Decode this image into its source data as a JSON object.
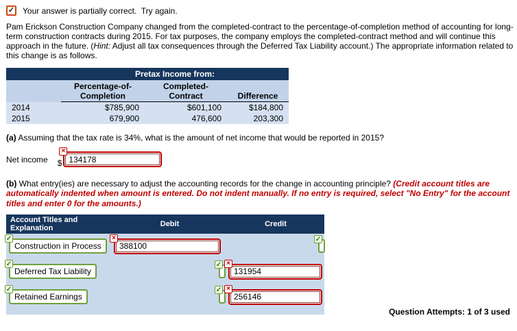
{
  "icons": {
    "check": "✓",
    "x": "×"
  },
  "colors": {
    "header_navy": "#17365D",
    "table_blue": "#C9D9EC",
    "correct_green": "#6FA03C",
    "incorrect_red": "#C00000"
  },
  "feedback": {
    "text": "Your answer is partially correct.  Try again.",
    "status": "partially-correct"
  },
  "problem": {
    "part1": "Pam Erickson Construction Company changed from the completed-contract to the percentage-of-completion method of accounting for long-term construction contracts during 2015. For tax purposes, the company employs the completed-contract method and will continue this approach in the future. (",
    "hint_word": "Hint:",
    "part2": " Adjust all tax consequences through the Deferred Tax Liability account.) The appropriate information related to this change is as follows."
  },
  "pretax_table": {
    "title": "Pretax Income from:",
    "columns": [
      "Percentage-of-Completion",
      "Completed-Contract",
      "Difference"
    ],
    "rows": [
      {
        "year": "2014",
        "poc": "$785,900",
        "cc": "$601,100",
        "diff": "$184,800"
      },
      {
        "year": "2015",
        "poc": "679,900",
        "cc": "476,600",
        "diff": "203,300"
      }
    ]
  },
  "part_a": {
    "label": "(a)",
    "question": " Assuming that the tax rate is 34%, what is the amount of net income that would be reported in 2015?",
    "field_label": "Net income",
    "currency": "$",
    "answer_value": "134178",
    "status": "incorrect"
  },
  "part_b": {
    "label": "(b)",
    "question": " What entry(ies) are necessary to adjust the accounting records for the change in accounting principle? ",
    "instruction": "(Credit account titles are automatically indented when amount is entered. Do not indent manually. If no entry is required, select \"No Entry\" for the account titles and enter 0 for the amounts.)"
  },
  "journal_table": {
    "columns": [
      "Account Titles and Explanation",
      "Debit",
      "Credit"
    ],
    "rows": [
      {
        "account": "Construction in Process",
        "debit": "388100",
        "credit": "",
        "account_status": "correct",
        "debit_status": "incorrect",
        "credit_status": "correct"
      },
      {
        "account": "Deferred Tax Liability",
        "debit": "",
        "credit": "131954",
        "account_status": "correct",
        "debit_status": "correct",
        "credit_status": "incorrect"
      },
      {
        "account": "Retained Earnings",
        "debit": "",
        "credit": "256146",
        "account_status": "correct",
        "debit_status": "correct",
        "credit_status": "incorrect"
      }
    ]
  },
  "footer": {
    "attempts": "Question Attempts: 1 of 3 used"
  }
}
